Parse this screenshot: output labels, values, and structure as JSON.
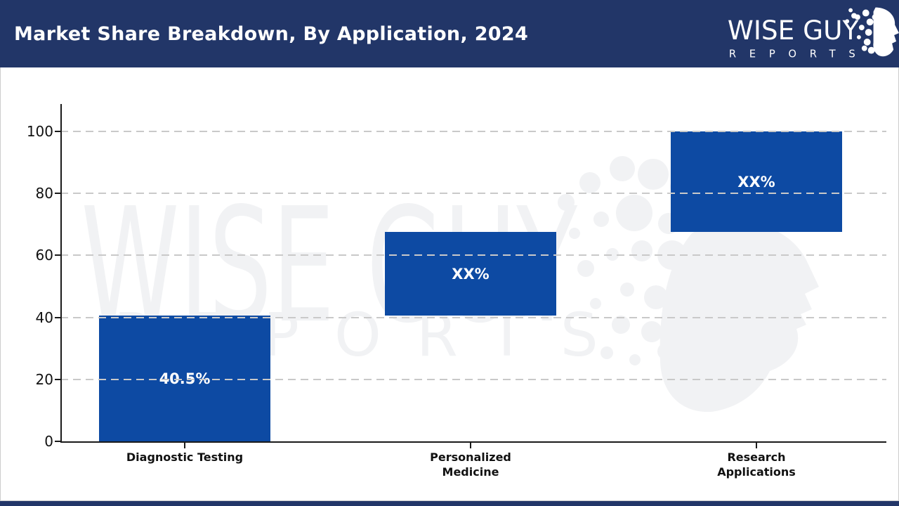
{
  "header": {
    "title": "Market Share Breakdown, By Application, 2024",
    "bg_color": "#223668",
    "logo": {
      "line1": "WISE GUY",
      "line2": "REPORTS",
      "face_icon": "face-profile-made-of-dots"
    }
  },
  "watermark": {
    "line1": "WISE GUY",
    "line2": "REPORTS"
  },
  "chart_data": {
    "type": "bar",
    "subtype": "waterfall-floating-bars",
    "title": "Market Share Breakdown, By Application, 2024",
    "categories": [
      "Diagnostic Testing",
      "Personalized\nMedicine",
      "Research\nApplications"
    ],
    "segments": [
      {
        "category": "Diagnostic Testing",
        "start": 0,
        "end": 40.5,
        "label": "40.5%"
      },
      {
        "category": "Personalized Medicine",
        "start": 40.5,
        "end": 67.5,
        "label": "XX%"
      },
      {
        "category": "Research Applications",
        "start": 67.5,
        "end": 100,
        "label": "XX%"
      }
    ],
    "xlabel": "",
    "ylabel": "",
    "ylim": [
      0,
      108
    ],
    "yticks": [
      0,
      20,
      40,
      60,
      80,
      100
    ],
    "grid": "horizontal-dashed",
    "legend": "none",
    "bar_color": "#0d4aa3",
    "bar_label_color": "#ffffff",
    "axis_color": "#1a1a1a",
    "grid_color": "#c9c9c9"
  },
  "footer": {
    "accent_color": "#223668"
  }
}
